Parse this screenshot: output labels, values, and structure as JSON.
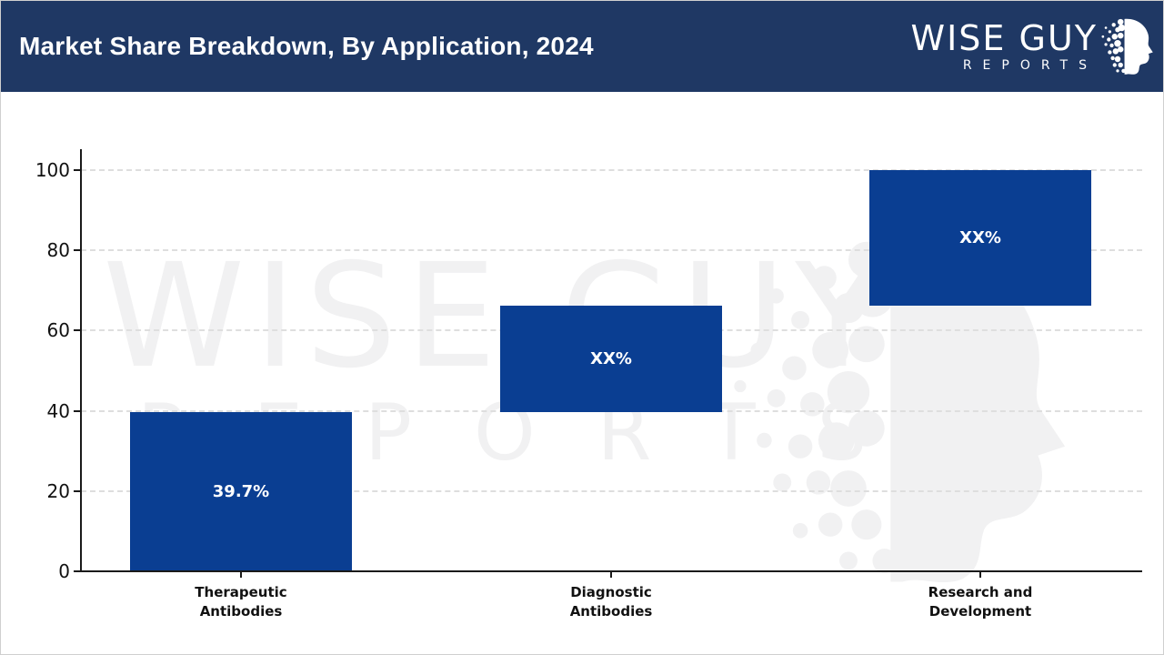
{
  "header": {
    "title": "Market Share Breakdown, By Application, 2024",
    "logo": {
      "line1": "WISE GUY",
      "line2": "REPORTS"
    },
    "background": "#1f3864"
  },
  "watermark": {
    "line1": "WISE GUY",
    "line2": "REPORTS"
  },
  "chart_data": {
    "type": "bar",
    "subtype": "floating-waterfall",
    "title": "Market Share Breakdown, By Application, 2024",
    "xlabel": "",
    "ylabel": "",
    "categories": [
      [
        "Therapeutic",
        "Antibodies"
      ],
      [
        "Diagnostic",
        "Antibodies"
      ],
      [
        "Research and",
        "Development"
      ]
    ],
    "segments": [
      {
        "name": "Therapeutic Antibodies",
        "start": 0,
        "end": 39.7,
        "label": "39.7%"
      },
      {
        "name": "Diagnostic Antibodies",
        "start": 39.7,
        "end": 66.2,
        "label": "XX%"
      },
      {
        "name": "Research and Development",
        "start": 66.2,
        "end": 100,
        "label": "XX%"
      }
    ],
    "yticks": [
      0,
      20,
      40,
      60,
      80,
      100
    ],
    "ylim": [
      0,
      105
    ],
    "grid": "horizontal-dashed",
    "legend": "none",
    "bar_color": "#0a3e92",
    "axis_color": "#1a1a1a",
    "grid_color": "#dedede",
    "label_color": "#ffffff"
  }
}
